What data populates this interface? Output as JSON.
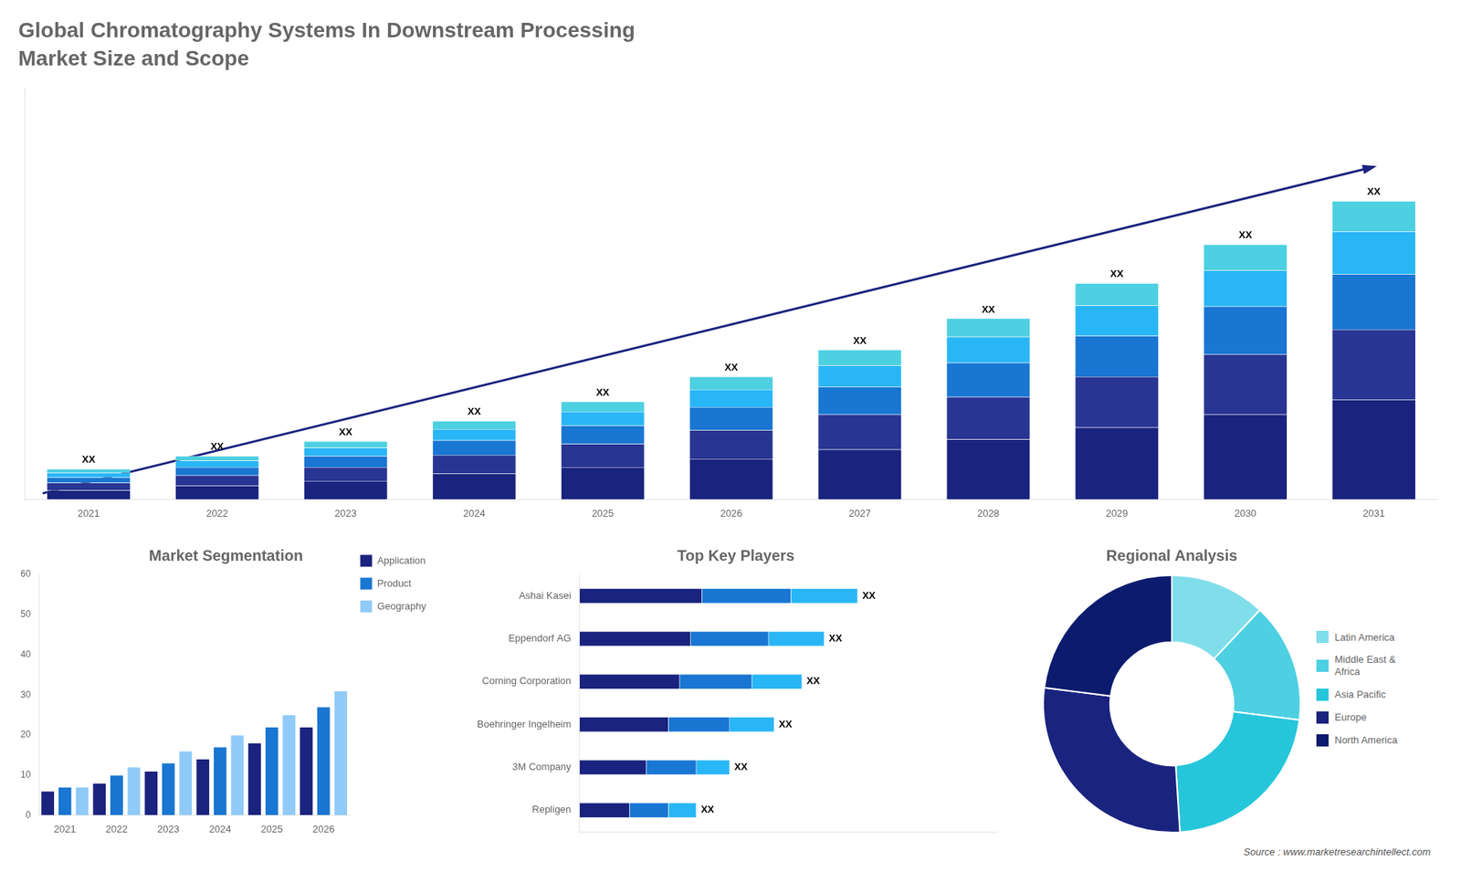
{
  "chart_data": [
    {
      "type": "bar",
      "title": "Global Chromatography Systems In Downstream Processing",
      "subtitle": "Market Size and Scope",
      "categories": [
        "2021",
        "2022",
        "2023",
        "2024",
        "2025",
        "2026",
        "2027",
        "2028",
        "2029",
        "2030",
        "2031"
      ],
      "series": [
        {
          "color": "#1a237e",
          "values": [
            1.0,
            1.5,
            2.0,
            2.8,
            3.5,
            4.4,
            5.4,
            6.5,
            7.8,
            9.2,
            10.8
          ]
        },
        {
          "color": "#283593",
          "values": [
            0.8,
            1.1,
            1.5,
            2.0,
            2.5,
            3.1,
            3.8,
            4.6,
            5.5,
            6.5,
            7.6
          ]
        },
        {
          "color": "#1976d2",
          "values": [
            0.6,
            0.9,
            1.2,
            1.6,
            2.0,
            2.5,
            3.0,
            3.7,
            4.4,
            5.2,
            6.0
          ]
        },
        {
          "color": "#29b6f6",
          "values": [
            0.5,
            0.7,
            0.9,
            1.2,
            1.5,
            1.9,
            2.3,
            2.8,
            3.3,
            3.9,
            4.6
          ]
        },
        {
          "color": "#4dd0e1",
          "values": [
            0.4,
            0.5,
            0.7,
            0.9,
            1.1,
            1.4,
            1.7,
            2.0,
            2.4,
            2.8,
            3.3
          ]
        }
      ],
      "stacked": true,
      "ylim": [
        0,
        44.574
      ],
      "yticks": [],
      "tick_labels": "x",
      "grid": false,
      "annotations": [
        "XX",
        "XX",
        "XX",
        "XX",
        "XX",
        "XX",
        "XX",
        "XX",
        "XX",
        "XX",
        "XX"
      ]
    },
    {
      "type": "bar",
      "title": "Market Segmentation",
      "categories": [
        "2021",
        "2022",
        "2023",
        "2024",
        "2025",
        "2026"
      ],
      "series": [
        {
          "name": "Application",
          "color": "#1a237e",
          "values": [
            6,
            8,
            11,
            14,
            18,
            22
          ]
        },
        {
          "name": "Product",
          "color": "#1976d2",
          "values": [
            7,
            10,
            13,
            17,
            22,
            27
          ]
        },
        {
          "name": "Geography",
          "color": "#90caf9",
          "values": [
            7,
            12,
            16,
            20,
            25,
            31
          ]
        }
      ],
      "ylim": [
        0,
        60
      ],
      "yticks": [
        0,
        10,
        20,
        30,
        40,
        50,
        60
      ],
      "grid": false,
      "legend": "right"
    },
    {
      "type": "bar",
      "orientation": "horizontal",
      "stacked": true,
      "title": "Top Key Players",
      "categories": [
        "Ashai Kasei",
        "Eppendorf AG",
        "Corning Corporation",
        "Boehringer Ingelheim",
        "3M Company",
        "Repligen"
      ],
      "series": [
        {
          "color": "#1a237e",
          "values": [
            0.22,
            0.2,
            0.18,
            0.16,
            0.12,
            0.09
          ]
        },
        {
          "color": "#1976d2",
          "values": [
            0.16,
            0.14,
            0.13,
            0.11,
            0.09,
            0.07
          ]
        },
        {
          "color": "#29b6f6",
          "values": [
            0.12,
            0.1,
            0.09,
            0.08,
            0.06,
            0.05
          ]
        }
      ],
      "xlim": [
        0,
        0.75
      ],
      "xticks": [],
      "tick_labels": "y",
      "grid": false,
      "annotations": [
        "XX",
        "XX",
        "XX",
        "XX",
        "XX",
        "XX"
      ]
    },
    {
      "type": "doughnut",
      "title": "Regional Analysis",
      "categories": [
        "Latin America",
        "Middle East &\nAfrica",
        "Asia Pacific",
        "Europe",
        "North America"
      ],
      "values": [
        12,
        15,
        22,
        28,
        23
      ],
      "colors": [
        "#80deea",
        "#4dd0e1",
        "#26c6da",
        "#1a237e",
        "#0d1b6e"
      ],
      "legend": "right",
      "annotations": [
        "Source : www.marketresearchintellect.com"
      ]
    }
  ]
}
